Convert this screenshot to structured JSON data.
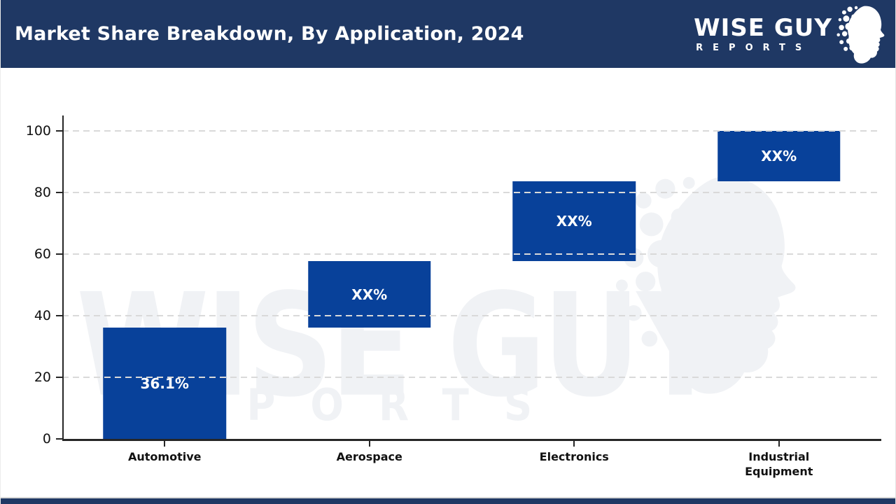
{
  "header": {
    "title": "Market Share Breakdown, By Application, 2024",
    "logo": {
      "primary": "WISE GUY",
      "secondary": "REPORTS"
    }
  },
  "watermark": {
    "primary": "WISE GUY",
    "secondary": "REPORTS"
  },
  "colors": {
    "header_bg": "#1f3864",
    "bar": "#08419a",
    "bar_label": "#ffffff",
    "gridline": "#d9d9d9",
    "axis": "#262626",
    "tick_label": "#111111",
    "watermark": "#f0f2f5",
    "footer_bg": "#1f3864"
  },
  "chart_data": {
    "type": "bar",
    "subtype": "floating-waterfall",
    "title": "Market Share Breakdown, By Application, 2024",
    "categories": [
      "Automotive",
      "Aerospace",
      "Electronics",
      "Industrial Equipment"
    ],
    "bars": [
      {
        "category": "Automotive",
        "start": 0,
        "end": 36.1,
        "label": "36.1%"
      },
      {
        "category": "Aerospace",
        "start": 36.1,
        "end": 57.7,
        "label": "XX%"
      },
      {
        "category": "Electronics",
        "start": 57.7,
        "end": 83.6,
        "label": "XX%"
      },
      {
        "category": "Industrial Equipment",
        "start": 83.6,
        "end": 100,
        "label": "XX%"
      }
    ],
    "ylim": [
      0,
      100
    ],
    "yticks": [
      0,
      20,
      40,
      60,
      80,
      100
    ],
    "xlabel": "",
    "ylabel": "",
    "grid": "dashed-horizontal",
    "legend": "none",
    "bar_color": "#08419a",
    "label_color": "#ffffff"
  }
}
